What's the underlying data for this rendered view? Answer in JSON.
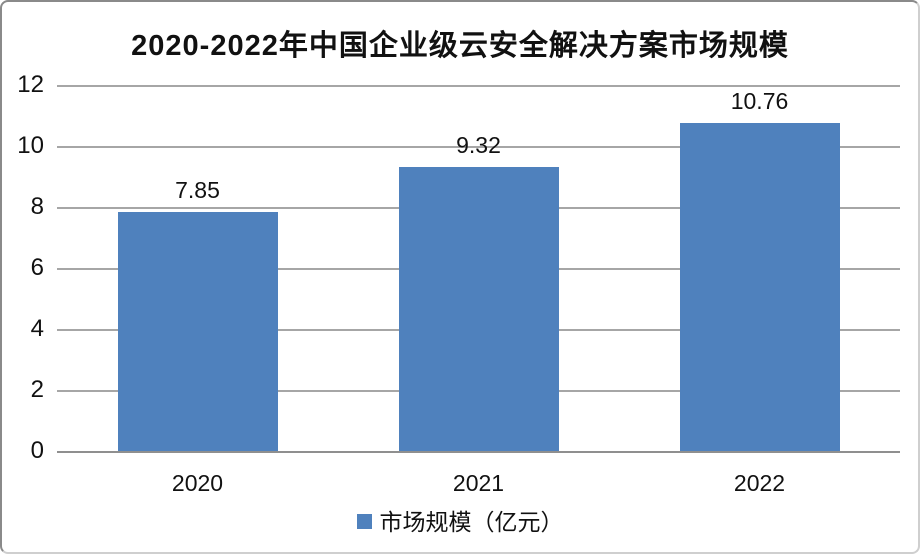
{
  "chart_data": {
    "type": "bar",
    "title": "2020-2022年中国企业级云安全解决方案市场规模",
    "categories": [
      "2020",
      "2021",
      "2022"
    ],
    "series": [
      {
        "name": "市场规模（亿元）",
        "values": [
          7.85,
          9.32,
          10.76
        ]
      }
    ],
    "data_labels": [
      "7.85",
      "9.32",
      "10.76"
    ],
    "xlabel": "",
    "ylabel": "",
    "ylim": [
      0,
      12
    ],
    "yticks": [
      0,
      2,
      4,
      6,
      8,
      10,
      12
    ],
    "grid": true,
    "legend_position": "bottom",
    "colors": {
      "bar": "#4F81BD",
      "legend_marker": "#4F81BD",
      "gridline": "#a6a6a6",
      "axis_line": "#8f8f8f",
      "text": "#111111",
      "border": "#8a8a8a",
      "background": "#ffffff"
    }
  }
}
